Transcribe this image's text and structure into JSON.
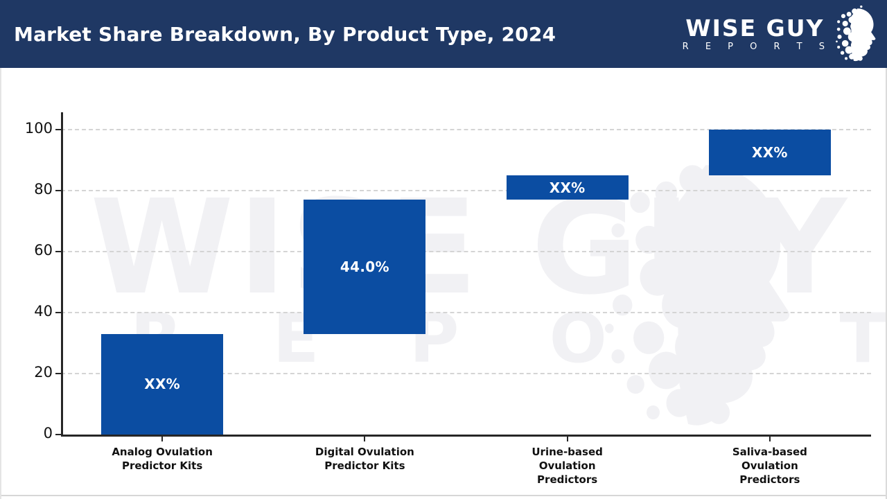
{
  "header": {
    "title": "Market Share Breakdown, By Product Type, 2024",
    "logo": {
      "wordmark": "WISE GUY",
      "subtext": "R E P O R T S"
    }
  },
  "watermark": {
    "wordmark": "WISE GUY",
    "subtext": "R E P O R T S"
  },
  "colors": {
    "header_bg": "#1F3864",
    "header_text": "#FFFFFF",
    "bar": "#0B4DA2",
    "bar_label": "#FFFFFF",
    "grid": "#D4D4D4",
    "axis": "#262626",
    "tick_text": "#111111",
    "watermark": "#F1F1F4",
    "page_bg": "#FFFFFF"
  },
  "chart_data": {
    "type": "bar",
    "variant": "waterfall",
    "title": "Market Share Breakdown, By Product Type, 2024",
    "categories": [
      "Analog Ovulation\nPredictor Kits",
      "Digital Ovulation\nPredictor Kits",
      "Urine-based\nOvulation\nPredictors",
      "Saliva-based\nOvulation\nPredictors"
    ],
    "values": [
      33,
      44,
      8,
      15
    ],
    "cumulative_ranges": [
      [
        0,
        33
      ],
      [
        33,
        77
      ],
      [
        77,
        85
      ],
      [
        85,
        100
      ]
    ],
    "bar_labels": [
      "XX%",
      "44.0%",
      "XX%",
      "XX%"
    ],
    "yticks": [
      0,
      20,
      40,
      60,
      80,
      100
    ],
    "ylim": [
      0,
      100
    ],
    "xlabel": "",
    "ylabel": "",
    "legend": "none",
    "grid": "horizontal-dashed"
  }
}
